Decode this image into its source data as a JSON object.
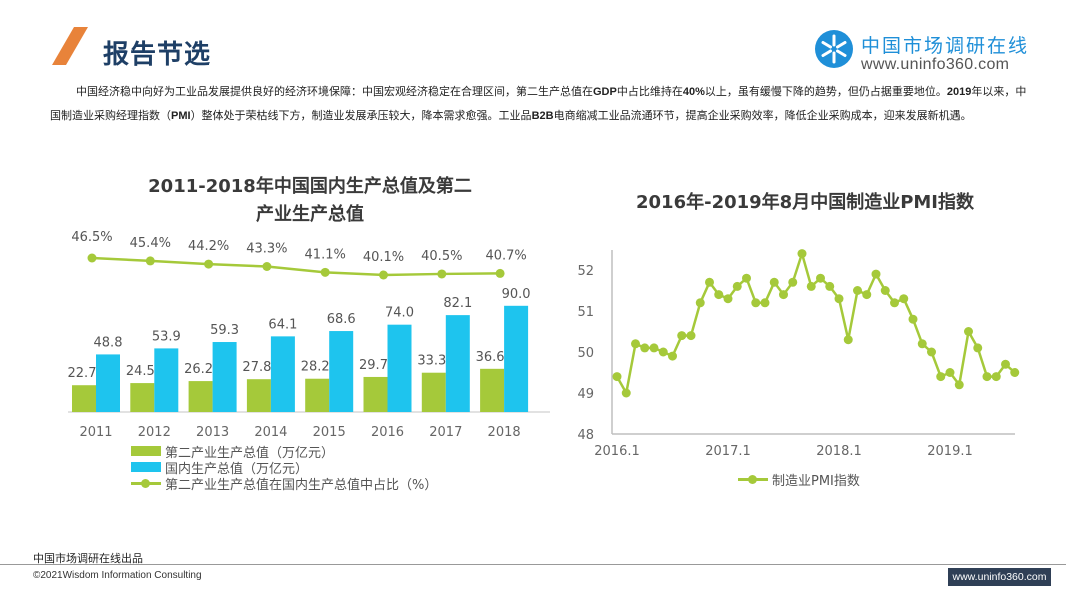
{
  "header": {
    "title": "报告节选",
    "accent_color": "#e8833a",
    "title_color": "#1e3f66"
  },
  "logo": {
    "name": "中国市场调研在线",
    "url": "www.uninfo360.com",
    "color": "#1f8fd8"
  },
  "intro": {
    "p1_a": "中国经济稳中向好为工业品发展提供良好的经济环境保障：中国宏观经济稳定在合理区间，第二生产总值在",
    "p1_gdp": "GDP",
    "p1_b": "中占比维持在",
    "p1_pct": "40%",
    "p1_c": "以上，虽有缓慢下降的趋势，但仍占据重要地位。",
    "p1_year": "2019",
    "p1_d": "年以来，中国制造业采购经理指数（",
    "p1_pmi": "PMI",
    "p1_e": "）整体处于荣枯线下方，制造业发展承压较大，降本需求愈强。工业品",
    "p1_b2b": "B2B",
    "p1_f": "电商缩减工业品流通环节，提高企业采购效率，降低企业采购成本，迎来发展新机遇。"
  },
  "chart_data": [
    {
      "type": "bar",
      "title": "2011-2018年中国国内生产总值及第二产业生产总值",
      "title_line1": "2011-2018年中国国内生产总值及第二",
      "title_line2": "产业生产总值",
      "categories": [
        "2011",
        "2012",
        "2013",
        "2014",
        "2015",
        "2016",
        "2017",
        "2018"
      ],
      "series": [
        {
          "name": "第二产业生产总值（万亿元）",
          "kind": "bar",
          "color": "#a5c93a",
          "values": [
            22.7,
            24.5,
            26.2,
            27.8,
            28.2,
            29.7,
            33.3,
            36.6
          ],
          "labels": [
            "22.7",
            "24.5",
            "26.2",
            "27.8",
            "28.2",
            "29.7",
            "33.3",
            "36.6"
          ]
        },
        {
          "name": "国内生产总值（万亿元）",
          "kind": "bar",
          "color": "#1ec4ee",
          "values": [
            48.8,
            53.9,
            59.3,
            64.1,
            68.6,
            74.0,
            82.1,
            90.0
          ],
          "labels": [
            "48.8",
            "53.9",
            "59.3",
            "64.1",
            "68.6",
            "74.0",
            "82.1",
            "90.0"
          ]
        },
        {
          "name": "第二产业生产总值在国内生产总值中占比（%）",
          "kind": "line",
          "color": "#a5c93a",
          "values": [
            46.5,
            45.4,
            44.2,
            43.3,
            41.1,
            40.1,
            40.5,
            40.7
          ],
          "labels": [
            "46.5%",
            "45.4%",
            "44.2%",
            "43.3%",
            "41.1%",
            "40.1%",
            "40.5%",
            "40.7%"
          ]
        }
      ],
      "xlabel": "",
      "ylabel": "",
      "legend": "bottom-left",
      "grid": false
    },
    {
      "type": "line",
      "title": "2016年-2019年8月中国制造业PMI指数",
      "series": [
        {
          "name": "制造业PMI指数",
          "color": "#a5c93a",
          "start": "2016.1",
          "values": [
            49.4,
            49.0,
            50.2,
            50.1,
            50.1,
            50.0,
            49.9,
            50.4,
            50.4,
            51.2,
            51.7,
            51.4,
            51.3,
            51.6,
            51.8,
            51.2,
            51.2,
            51.7,
            51.4,
            51.7,
            52.4,
            51.6,
            51.8,
            51.6,
            51.3,
            50.3,
            51.5,
            51.4,
            51.9,
            51.5,
            51.2,
            51.3,
            50.8,
            50.2,
            50.0,
            49.4,
            49.5,
            49.2,
            50.5,
            50.1,
            49.4,
            49.4,
            49.7,
            49.5
          ]
        }
      ],
      "x_ticks": [
        {
          "label": "2016.1",
          "index": 0
        },
        {
          "label": "2017.1",
          "index": 12
        },
        {
          "label": "2018.1",
          "index": 24
        },
        {
          "label": "2019.1",
          "index": 36
        }
      ],
      "y_ticks": [
        "48",
        "49",
        "50",
        "51",
        "52"
      ],
      "ylim": [
        48,
        52.5
      ],
      "legend": "bottom-center",
      "grid": false
    }
  ],
  "footer": {
    "brand": "中国市场调研在线出品",
    "copyright": "©2021Wisdom Information Consulting",
    "url": "www.uninfo360.com"
  }
}
